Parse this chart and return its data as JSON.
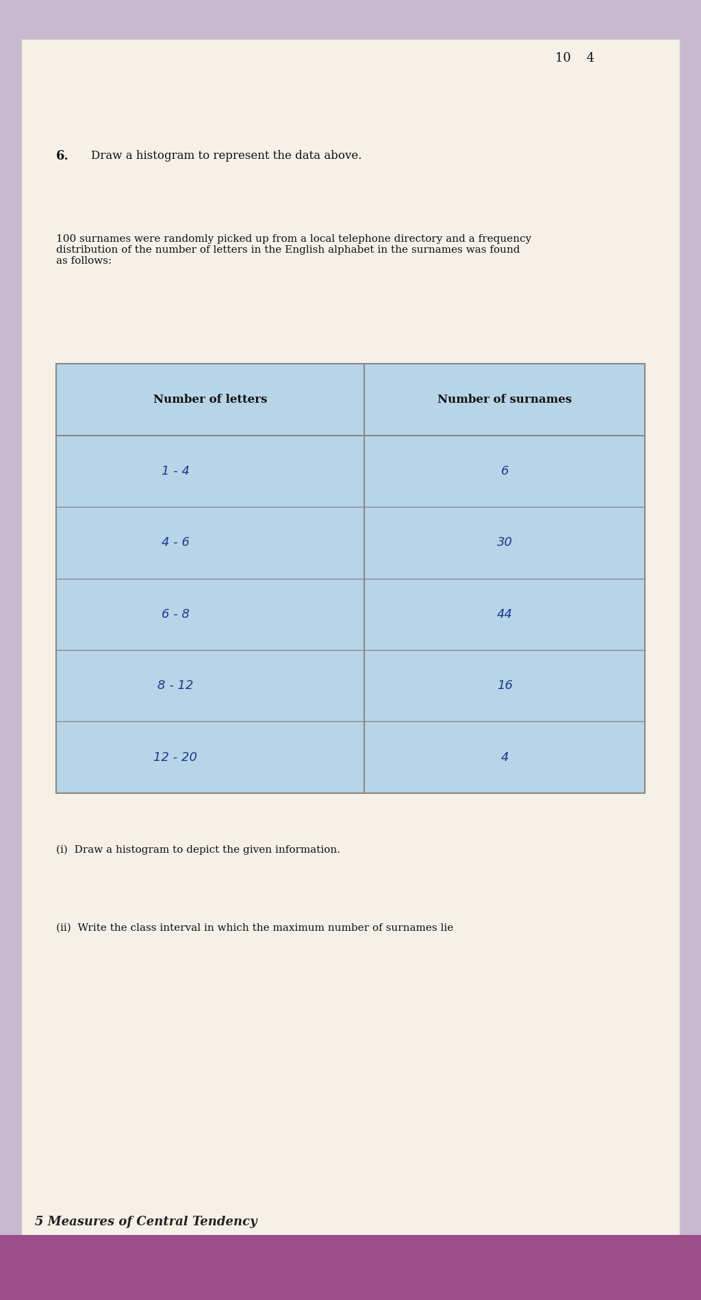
{
  "figsize": [
    10.24,
    18.98
  ],
  "dpi": 100,
  "bg_color": "#c8b8d0",
  "page_bg": "#f5f0e8",
  "table_bg": "#b8d4e8",
  "table_border": "#888888",
  "header_text_color": "#111111",
  "body_text_color": "#111111",
  "title_text": "Draw a histogram to represent the data above.",
  "intro_text": "100 surnames were randomly picked up from a local telephone directory and a frequency\ndistribution of the number of letters in the English alphabet in the surnames was found\nas follows:",
  "table_headers": [
    "Number of letters",
    "Number of surnames"
  ],
  "table_rows": [
    [
      "1 - 4",
      "6"
    ],
    [
      "4 - 6",
      "30"
    ],
    [
      "6 - 8",
      "44"
    ],
    [
      "8 - 12",
      "16"
    ],
    [
      "12 - 20",
      "4"
    ]
  ],
  "question_i": "(i)  Draw a histogram to depict the given information.",
  "question_ii": "(ii)  Write the class interval in which the maximum number of surnames lie",
  "section_title": "5 Measures of Central Tendency",
  "page_number_top": "10    4",
  "corner_text": "6."
}
